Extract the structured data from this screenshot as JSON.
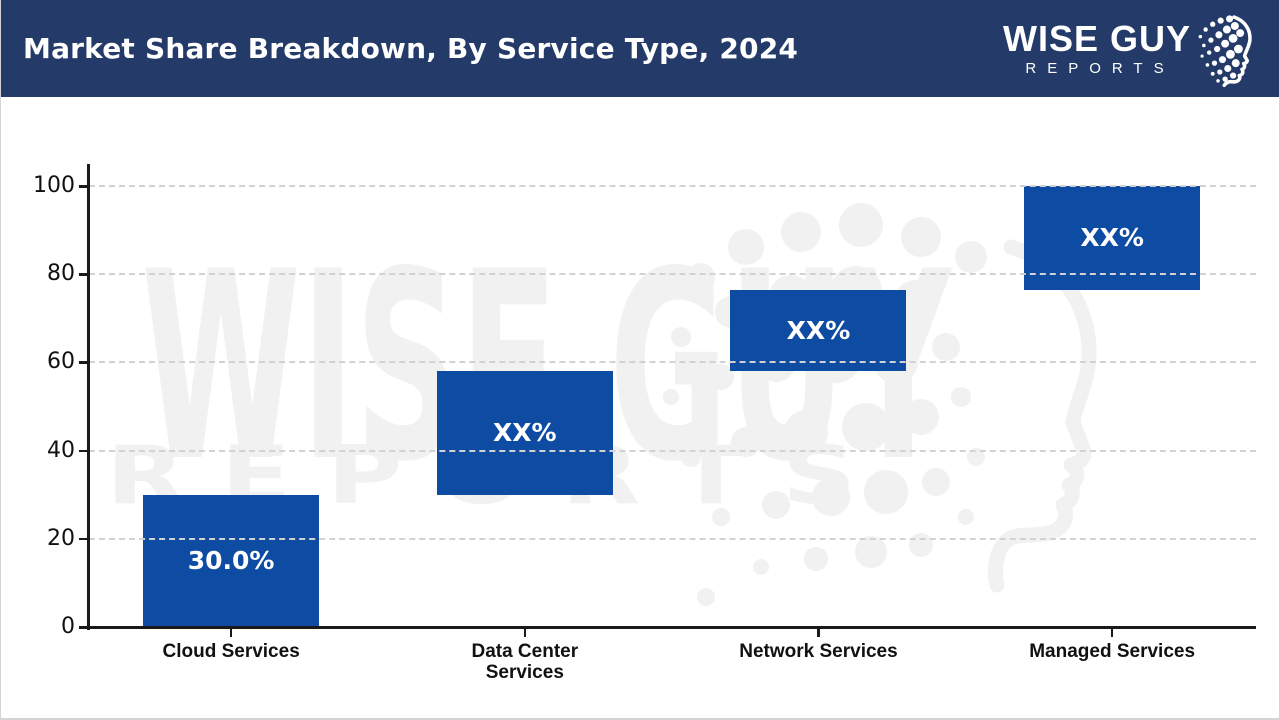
{
  "header": {
    "title": "Market Share Breakdown, By Service Type, 2024",
    "background_color": "#243b69",
    "logo": {
      "line1": "WISE GUY",
      "line2": "REPORTS"
    }
  },
  "watermark": {
    "line1": "WISE GUY",
    "line2": "R E P O R T S"
  },
  "chart_data": {
    "type": "bar",
    "subtype": "waterfall",
    "title": "Market Share Breakdown, By Service Type, 2024",
    "xlabel": "",
    "ylabel": "",
    "ylim": [
      0,
      105
    ],
    "yticks": [
      0,
      20,
      40,
      60,
      80,
      100
    ],
    "grid": true,
    "grid_style": "dashed",
    "categories": [
      "Cloud Services",
      "Data Center Services",
      "Network Services",
      "Managed Services"
    ],
    "category_lines": [
      [
        "Cloud Services"
      ],
      [
        "Data Center",
        "Services"
      ],
      [
        "Network Services"
      ],
      [
        "Managed Services"
      ]
    ],
    "values": [
      30,
      28,
      18.5,
      23.5
    ],
    "segments": [
      {
        "category": "Cloud Services",
        "start": 0,
        "end": 30,
        "label": "30.0%"
      },
      {
        "category": "Data Center Services",
        "start": 30,
        "end": 58,
        "label": "XX%"
      },
      {
        "category": "Network Services",
        "start": 58,
        "end": 76.5,
        "label": "XX%"
      },
      {
        "category": "Managed Services",
        "start": 76.5,
        "end": 100,
        "label": "XX%"
      }
    ],
    "bar_color": "#0e4ba3",
    "bar_label_color": "#ffffff",
    "gridline_color": "#d2d2d2",
    "axis_color": "#1a1a1a"
  }
}
